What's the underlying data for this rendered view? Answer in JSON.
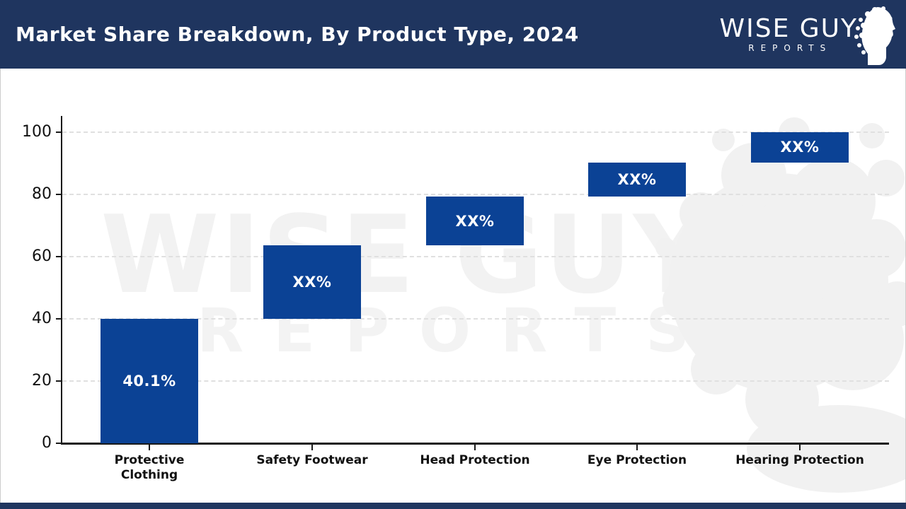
{
  "header": {
    "title": "Market Share Breakdown, By Product Type, 2024",
    "bg_color": "#1f355f",
    "logo": {
      "line1": "WISE GUY",
      "line2": "REPORTS"
    }
  },
  "watermark": {
    "line1": "WISE GUY",
    "line2": "REPORTS"
  },
  "footer": {
    "bg_color": "#1f355f"
  },
  "chart_data": {
    "type": "bar",
    "subtype": "waterfall",
    "title": "Market Share Breakdown, By Product Type, 2024",
    "xlabel": "",
    "ylabel": "",
    "ylim": [
      0,
      100
    ],
    "yticks": [
      0,
      20,
      40,
      60,
      80,
      100
    ],
    "grid": "horizontal-dashed",
    "legend": "none",
    "bar_color": "#0b4295",
    "bar_label_color": "#ffffff",
    "categories": [
      "Protective Clothing",
      "Safety Footwear",
      "Head Protection",
      "Eye Protection",
      "Hearing Protection"
    ],
    "segments": [
      {
        "category": "Protective Clothing",
        "tick_label": "Protective\nClothing",
        "start": 0,
        "end": 40.1,
        "increment": 40.1,
        "label": "40.1%"
      },
      {
        "category": "Safety Footwear",
        "tick_label": "Safety Footwear",
        "start": 40.1,
        "end": 63.6,
        "increment": 23.5,
        "label": "XX%"
      },
      {
        "category": "Head Protection",
        "tick_label": "Head Protection",
        "start": 63.6,
        "end": 79.3,
        "increment": 15.7,
        "label": "XX%"
      },
      {
        "category": "Eye Protection",
        "tick_label": "Eye Protection",
        "start": 79.3,
        "end": 90.3,
        "increment": 11.0,
        "label": "XX%"
      },
      {
        "category": "Hearing Protection",
        "tick_label": "Hearing Protection",
        "start": 90.3,
        "end": 100,
        "increment": 9.7,
        "label": "XX%"
      }
    ]
  }
}
